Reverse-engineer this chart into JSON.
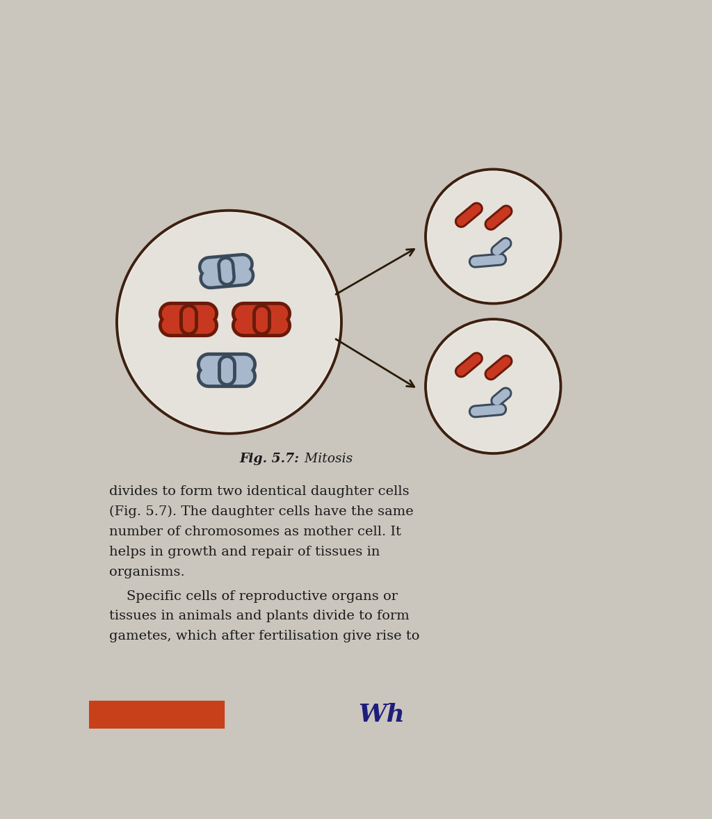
{
  "bg_color": "#cac6be",
  "cell_border_color": "#3d2010",
  "red_chrom_color": "#c83820",
  "red_chrom_outline": "#6a1a08",
  "blue_chrom_color": "#a8b8cc",
  "blue_chrom_outline": "#3a4a5a",
  "arrow_color": "#2a1a08",
  "fig_label_bold": "Fig. 5.7:",
  "fig_label_italic": " Mitosis",
  "text_color": "#1a1a1a",
  "paragraph1_lines": [
    "divides to form two identical daughter cells",
    "(Fig. 5.7). The daughter cells have the same",
    "number of chromosomes as mother cell. It",
    "helps in growth and repair of tissues in",
    "organisms."
  ],
  "paragraph2_lines": [
    "    Specific cells of reproductive organs or",
    "tissues in animals and plants divide to form",
    "gametes, which after fertilisation give rise to"
  ],
  "bottom_orange_color": "#c8401a",
  "bottom_blue_color": "#1e1e7a",
  "bottom_blue_text": "Wh"
}
